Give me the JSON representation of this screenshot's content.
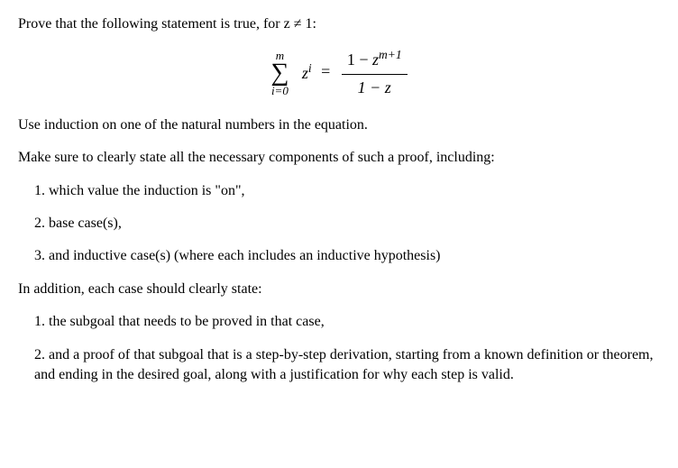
{
  "intro": "Prove that the following statement is true, for z ≠ 1:",
  "equation": {
    "sum_top": "m",
    "sum_bot": "i=0",
    "sum_sym": "∑",
    "term": "z",
    "term_sup": "i",
    "equals": " = ",
    "frac_num_left": "1 − ",
    "frac_num_var": "z",
    "frac_num_sup": "m+1",
    "frac_den": "1 − z"
  },
  "instruction1": "Use induction on one of the natural numbers in the equation.",
  "instruction2": "Make sure to clearly state all the necessary components of such a proof, including:",
  "listA": [
    "1. which value the induction is \"on\",",
    "2. base case(s),",
    "3. and inductive case(s) (where each includes an inductive hypothesis)"
  ],
  "instruction3": "In addition, each case should clearly state:",
  "listB": [
    "1. the subgoal that needs to be proved in that case,",
    "2. and a proof of that subgoal that is a step-by-step derivation, starting from a known definition or theorem, and ending in the desired goal, along with a justification for why each step is valid."
  ],
  "style": {
    "text_color": "#000000",
    "background_color": "#ffffff",
    "body_fontsize": 16,
    "math_fontsize": 18,
    "line_height": 1.4
  }
}
